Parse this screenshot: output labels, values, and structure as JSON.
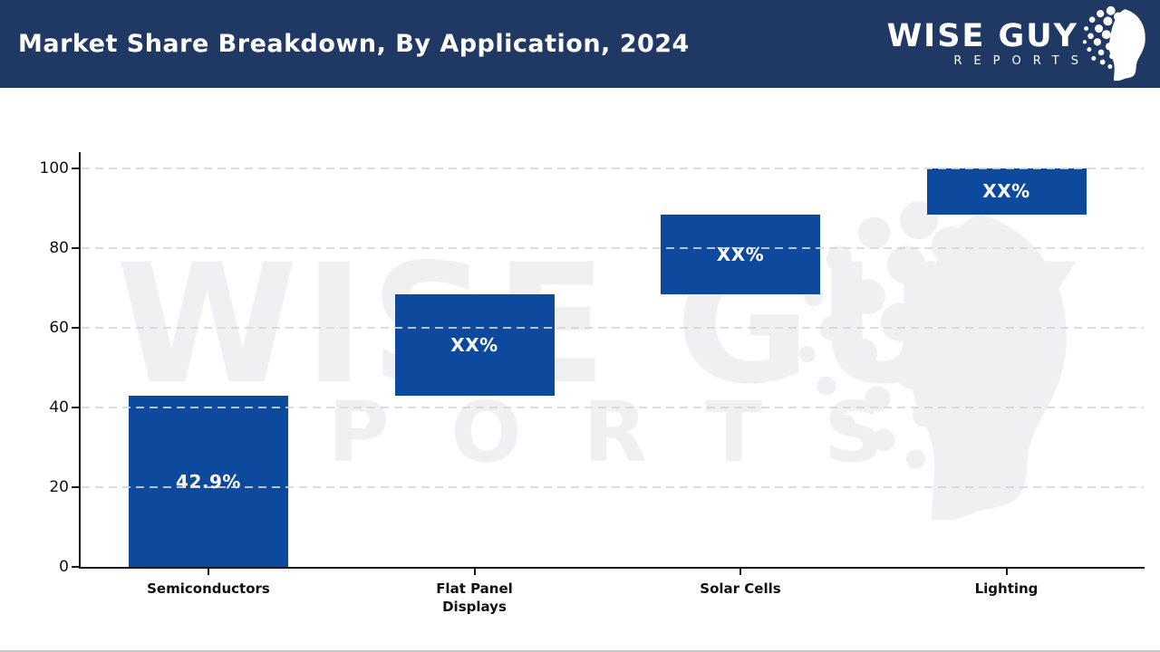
{
  "header": {
    "title": "Market Share Breakdown, By Application, 2024",
    "bg_color": "#1f3864",
    "logo": {
      "line1": "WISE GUY",
      "line2": "REPORTS"
    }
  },
  "watermark": {
    "line1": "WISE GUY",
    "line2": "PORTS"
  },
  "chart_data": {
    "type": "bar",
    "subtype": "waterfall",
    "title": "Market Share Breakdown, By Application, 2024",
    "categories": [
      {
        "lines": [
          "Semiconductors"
        ]
      },
      {
        "lines": [
          "Flat Panel",
          "Displays"
        ]
      },
      {
        "lines": [
          "Solar Cells"
        ]
      },
      {
        "lines": [
          "Lighting"
        ]
      }
    ],
    "segments": [
      {
        "category": "Semiconductors",
        "start": 0,
        "end": 42.9,
        "label": "42.9%"
      },
      {
        "category": "Flat Panel Displays",
        "start": 42.9,
        "end": 68.3,
        "label": "XX%"
      },
      {
        "category": "Solar Cells",
        "start": 68.3,
        "end": 88.5,
        "label": "XX%"
      },
      {
        "category": "Lighting",
        "start": 88.5,
        "end": 100,
        "label": "XX%"
      }
    ],
    "ylim": [
      0,
      100
    ],
    "yticks": [
      0,
      20,
      40,
      60,
      80,
      100
    ],
    "xlabel": "",
    "ylabel": "",
    "grid": "dashed-horizontal-over-bars",
    "bar_color": "#0d4a9e",
    "value_label_color": "#ffffff",
    "legend": "none"
  }
}
